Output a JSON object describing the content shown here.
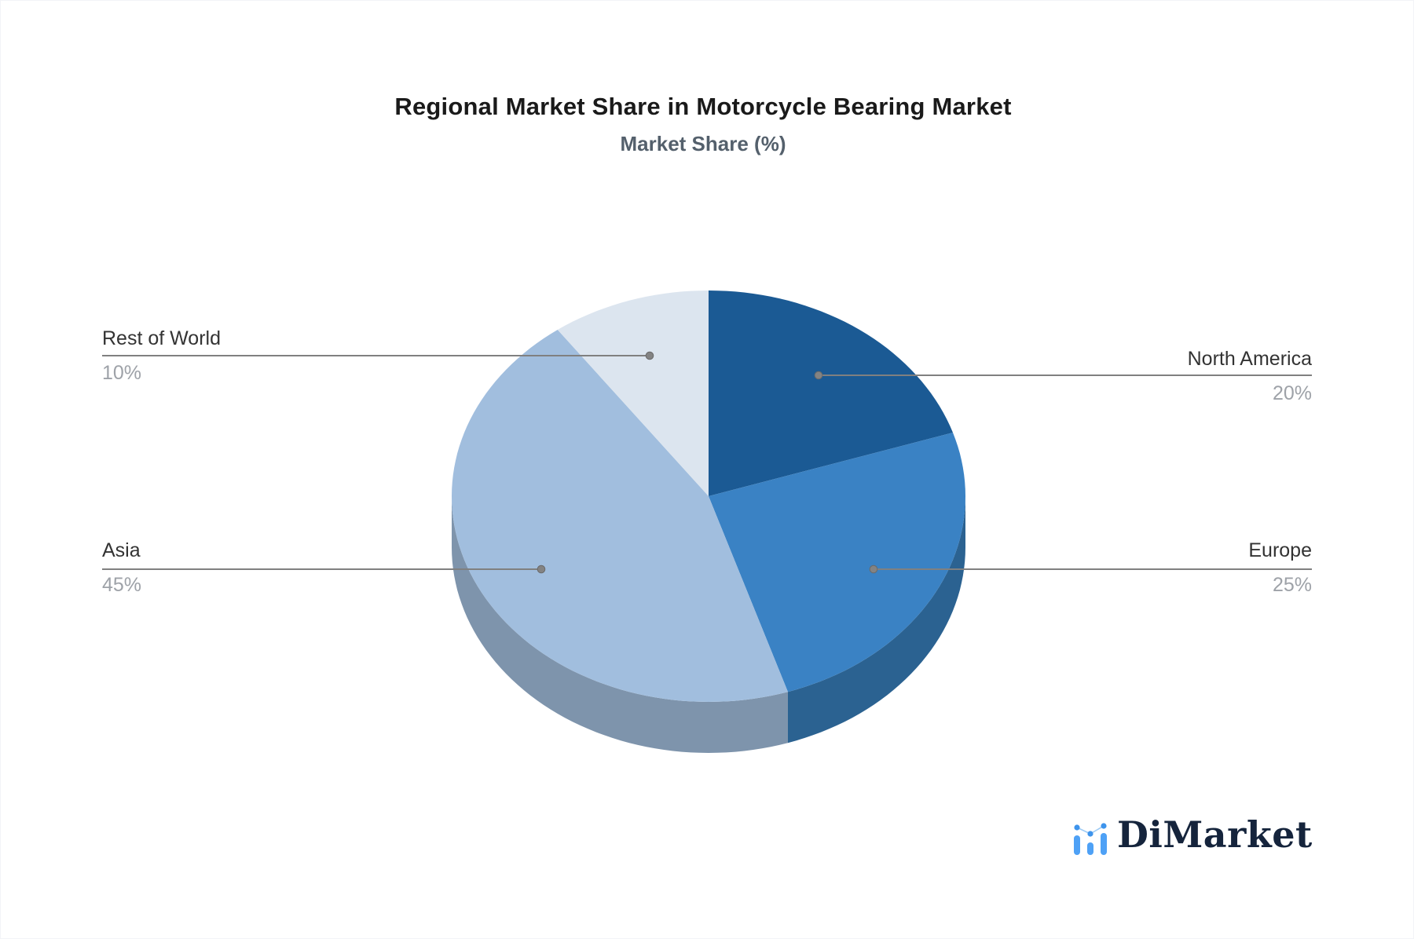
{
  "chart_data": {
    "type": "pie",
    "style": "3d-extruded",
    "title": "Regional Market Share in Motorcycle Bearing Market",
    "subtitle": "Market Share (%)",
    "start_angle": "12 o'clock, clockwise",
    "legend_position": "callout-labels-left-right",
    "series": [
      {
        "label": "North America",
        "value": 20,
        "display": "20%",
        "color": "#1B5A94",
        "side_color": "#174E82"
      },
      {
        "label": "Europe",
        "value": 25,
        "display": "25%",
        "color": "#3A82C4",
        "side_color": "#2B6291"
      },
      {
        "label": "Asia",
        "value": 45,
        "display": "45%",
        "color": "#A1BEDE",
        "side_color": "#7E94AC"
      },
      {
        "label": "Rest of World",
        "value": 10,
        "display": "10%",
        "color": "#DCE5EF",
        "side_color": "#B9C6D6"
      }
    ],
    "label_color": "#333333",
    "value_color": "#9EA2A8",
    "leader_line_color": "#808080",
    "leader_dot_color": "#838383"
  },
  "branding": {
    "name": "DiMarket",
    "icon": "bar-line-chart-icon",
    "text_color": "#15243C",
    "bar_color": "#4EA1F6",
    "dot_color": "#3E94EC",
    "connector_color": "#9ECBF5"
  }
}
